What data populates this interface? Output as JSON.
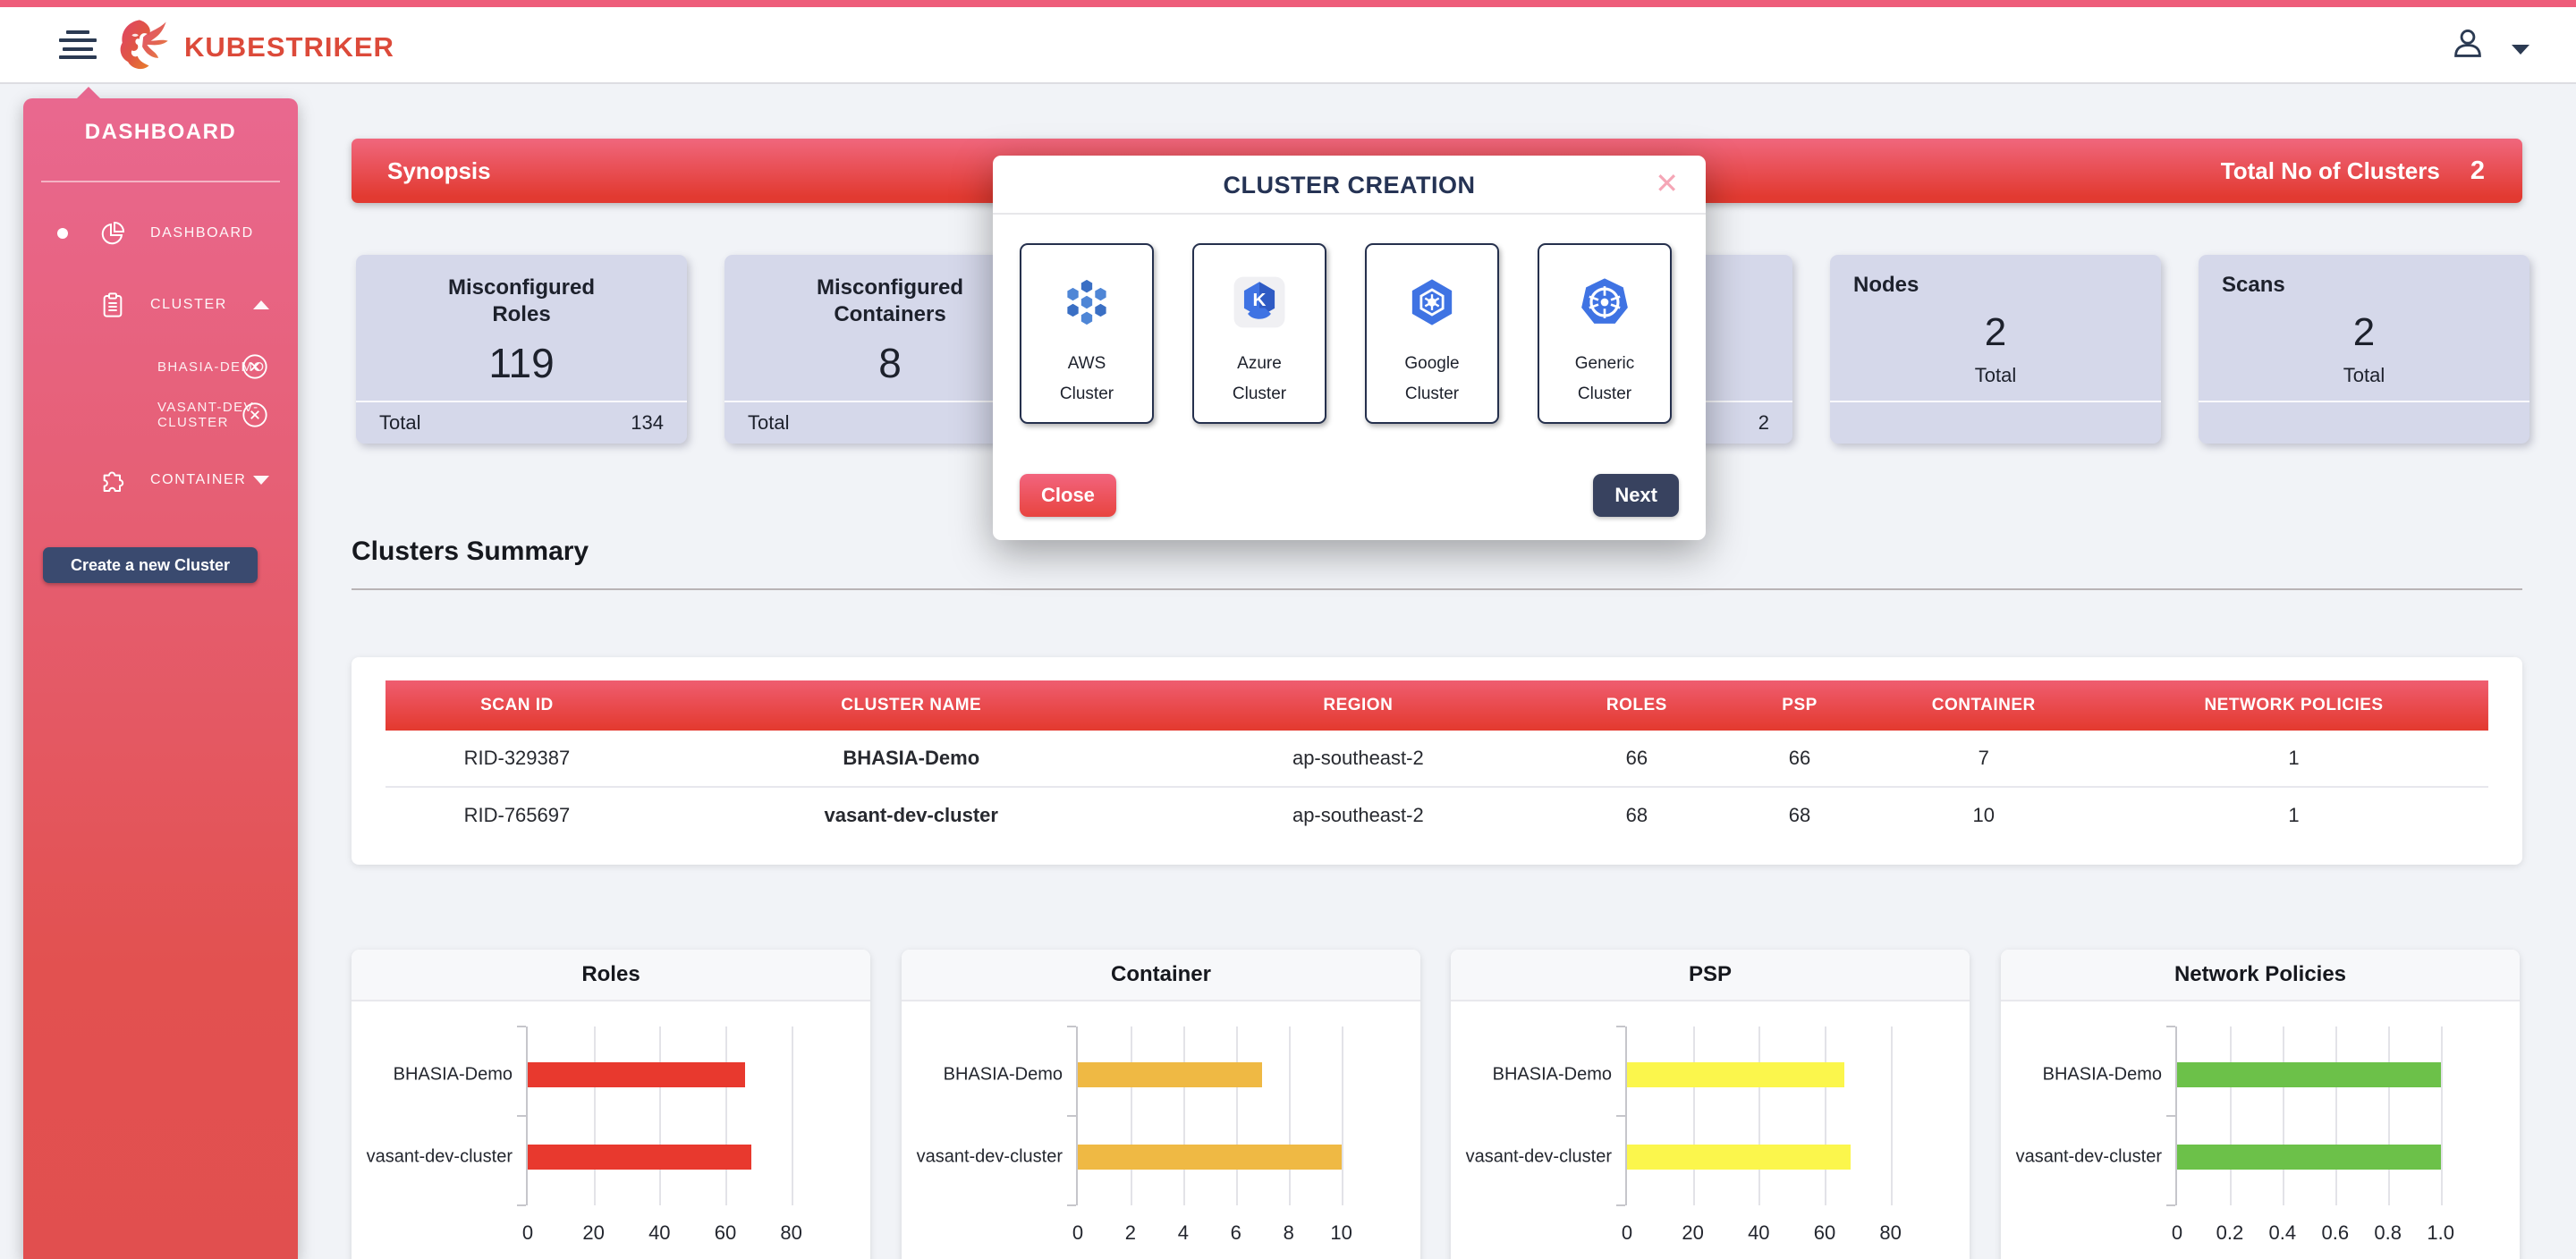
{
  "navbar": {
    "brand": "KUBESTRIKER"
  },
  "sidebar": {
    "title": "DASHBOARD",
    "items": [
      {
        "label": "DASHBOARD",
        "icon": "pie-chart-icon",
        "active": true
      },
      {
        "label": "CLUSTER",
        "icon": "clipboard-icon",
        "expanded": true,
        "children": [
          {
            "label": "BHASIA-DEMO"
          },
          {
            "label": "VASANT-DEV-CLUSTER"
          }
        ]
      },
      {
        "label": "CONTAINER",
        "icon": "puzzle-icon",
        "expanded": false
      }
    ],
    "create_button": "Create a new Cluster"
  },
  "synopsis": {
    "title": "Synopsis",
    "total_label": "Total No of Clusters",
    "total_value": "2"
  },
  "stat_cards": {
    "card1": {
      "title_line1": "Misconfigured",
      "title_line2": "Roles",
      "value": "119",
      "footer_label": "Total",
      "footer_value": "134"
    },
    "card2": {
      "title_line1": "Misconfigured",
      "title_line2": "Containers",
      "value": "8",
      "footer_label": "Total",
      "footer_value": ""
    },
    "card4_partial": {
      "footer_value": "2"
    },
    "card5": {
      "title": "Nodes",
      "value": "2",
      "subtitle": "Total"
    },
    "card6": {
      "title": "Scans",
      "value": "2",
      "subtitle": "Total"
    }
  },
  "modal": {
    "title": "CLUSTER CREATION",
    "close_icon": "✕",
    "options": [
      {
        "line1": "AWS",
        "line2": "Cluster",
        "icon": "aws-cluster-icon"
      },
      {
        "line1": "Azure",
        "line2": "Cluster",
        "icon": "azure-cluster-icon"
      },
      {
        "line1": "Google",
        "line2": "Cluster",
        "icon": "google-cluster-icon"
      },
      {
        "line1": "Generic",
        "line2": "Cluster",
        "icon": "generic-cluster-icon"
      }
    ],
    "close_label": "Close",
    "next_label": "Next"
  },
  "clusters_summary": {
    "heading": "Clusters Summary",
    "columns": [
      "SCAN ID",
      "CLUSTER NAME",
      "REGION",
      "ROLES",
      "PSP",
      "CONTAINER",
      "NETWORK POLICIES"
    ],
    "rows": [
      {
        "scan_id": "RID-329387",
        "cluster_name": "BHASIA-Demo",
        "region": "ap-southeast-2",
        "roles": "66",
        "psp": "66",
        "container": "7",
        "network_policies": "1"
      },
      {
        "scan_id": "RID-765697",
        "cluster_name": "vasant-dev-cluster",
        "region": "ap-southeast-2",
        "roles": "68",
        "psp": "68",
        "container": "10",
        "network_policies": "1"
      }
    ]
  },
  "chart_data": [
    {
      "type": "bar",
      "orientation": "horizontal",
      "title": "Roles",
      "categories": [
        "BHASIA-Demo",
        "vasant-dev-cluster"
      ],
      "values": [
        66,
        68
      ],
      "color": "#e8392e",
      "axis_max": 80,
      "tick_labels": [
        "0",
        "20",
        "40",
        "60",
        "80"
      ],
      "grid": true,
      "xlim": [
        0,
        80
      ]
    },
    {
      "type": "bar",
      "orientation": "horizontal",
      "title": "Container",
      "categories": [
        "BHASIA-Demo",
        "vasant-dev-cluster"
      ],
      "values": [
        7,
        10
      ],
      "color": "#efb944",
      "axis_max": 10,
      "tick_labels": [
        "0",
        "2",
        "4",
        "6",
        "8",
        "10"
      ],
      "grid": true,
      "xlim": [
        0,
        10
      ]
    },
    {
      "type": "bar",
      "orientation": "horizontal",
      "title": "PSP",
      "categories": [
        "BHASIA-Demo",
        "vasant-dev-cluster"
      ],
      "values": [
        66,
        68
      ],
      "color": "#fbf64c",
      "axis_max": 80,
      "tick_labels": [
        "0",
        "20",
        "40",
        "60",
        "80"
      ],
      "grid": true,
      "xlim": [
        0,
        80
      ]
    },
    {
      "type": "bar",
      "orientation": "horizontal",
      "title": "Network Policies",
      "categories": [
        "BHASIA-Demo",
        "vasant-dev-cluster"
      ],
      "values": [
        1,
        1
      ],
      "color": "#6cc149",
      "axis_max": 1,
      "tick_labels": [
        "0",
        "0.2",
        "0.4",
        "0.6",
        "0.8",
        "1.0"
      ],
      "grid": true,
      "xlim": [
        0,
        1
      ]
    }
  ]
}
